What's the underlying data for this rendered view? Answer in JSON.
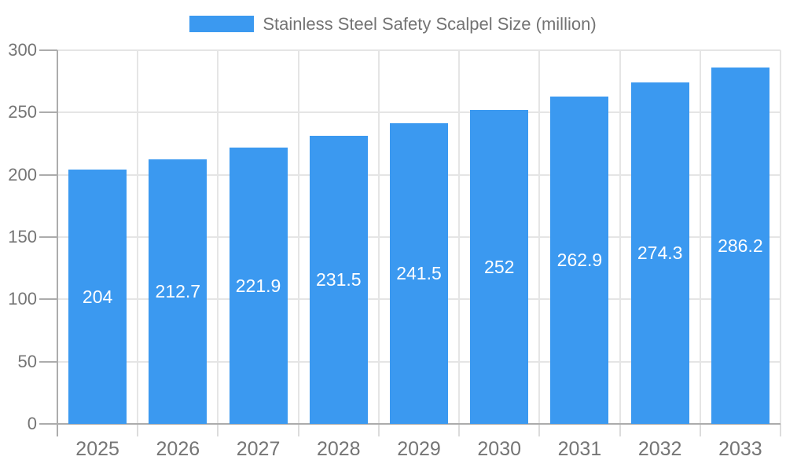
{
  "colors": {
    "bar": "#3B99F0",
    "axis_line": "#ACACAC",
    "gridline": "#E5E5E5",
    "x_boundary_tick": "#DCDCDC",
    "tick_label": "#757575",
    "legend_text": "#737373",
    "value_label": "#FFFFFF",
    "background": "#FFFFFF"
  },
  "legend": {
    "label": "Stainless Steel Safety Scalpel Size (million)"
  },
  "chart_data": {
    "type": "bar",
    "title": "Stainless Steel Safety Scalpel Size (million)",
    "categories": [
      "2025",
      "2026",
      "2027",
      "2028",
      "2029",
      "2030",
      "2031",
      "2032",
      "2033"
    ],
    "values": [
      204,
      212.7,
      221.9,
      231.5,
      241.5,
      252,
      262.9,
      274.3,
      286.2
    ],
    "value_labels": [
      "204",
      "212.7",
      "221.9",
      "231.5",
      "241.5",
      "252",
      "262.9",
      "274.3",
      "286.2"
    ],
    "xlabel": "",
    "ylabel": "",
    "ylim": [
      0,
      300
    ],
    "y_ticks": [
      0,
      50,
      100,
      150,
      200,
      250,
      300
    ],
    "grid": true,
    "legend_position": "top",
    "value_label_position": "center-of-bar"
  }
}
